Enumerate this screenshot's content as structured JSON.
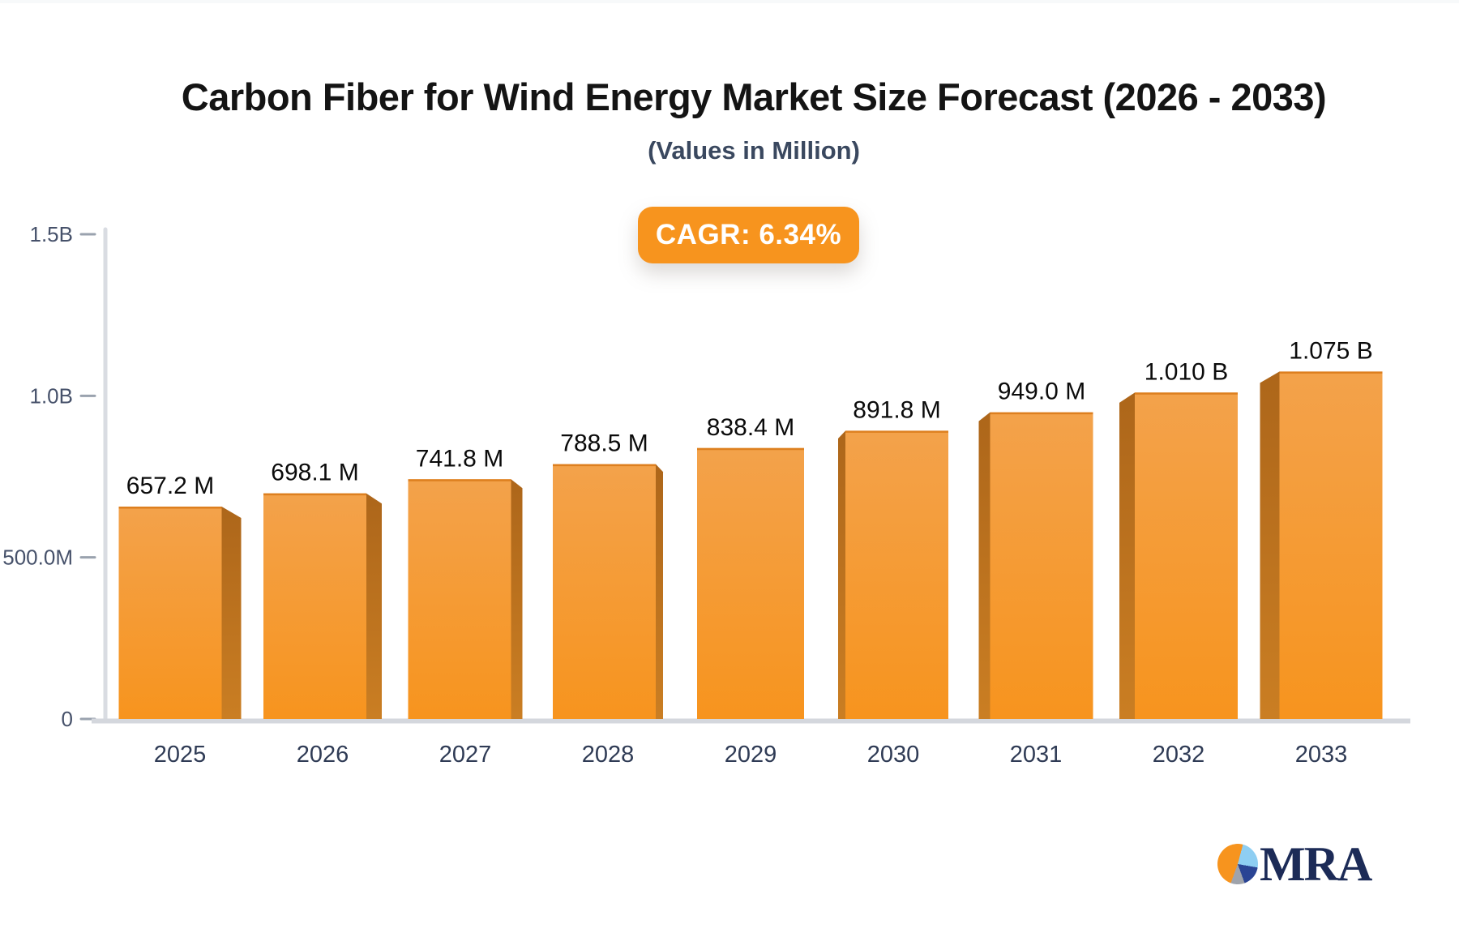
{
  "header": {
    "title": "Carbon Fiber for Wind Energy Market Size Forecast (2026 - 2033)",
    "subtitle": "(Values in Million)"
  },
  "cagr_badge": {
    "label": "CAGR: 6.34%",
    "background_color": "#f7941e",
    "text_color": "#ffffff"
  },
  "chart_data": {
    "type": "bar",
    "title": "Carbon Fiber for Wind Energy Market Size Forecast (2026 - 2033)",
    "subtitle": "(Values in Million)",
    "categories": [
      "2025",
      "2026",
      "2027",
      "2028",
      "2029",
      "2030",
      "2031",
      "2032",
      "2033"
    ],
    "values_millions": [
      657.2,
      698.1,
      741.8,
      788.5,
      838.4,
      891.8,
      949.0,
      1010.0,
      1075.0
    ],
    "value_labels": [
      "657.2 M",
      "698.1 M",
      "741.8 M",
      "788.5 M",
      "838.4 M",
      "891.8 M",
      "949.0 M",
      "1.010 B",
      "1.075 B"
    ],
    "xlabel": "",
    "ylabel": "",
    "ylim": [
      0,
      1500
    ],
    "yticks": [
      {
        "value": 0,
        "label": "0"
      },
      {
        "value": 500,
        "label": "500.0M"
      },
      {
        "value": 1000,
        "label": "1.0B"
      },
      {
        "value": 1500,
        "label": "1.5B"
      }
    ],
    "grid": false,
    "legend": null,
    "colors": {
      "bar_face_top": "#f3a24b",
      "bar_face_bottom": "#f7941e",
      "bar_top_edge": "#dd7f1f",
      "bar_side_top": "#ad661a",
      "bar_side_bottom": "#ca7e23",
      "axis_line": "#d9dce2",
      "baseline": "#d4d7dd",
      "tick": "#9aa2ae",
      "y_label": "#46516a",
      "x_label": "#2f3b55",
      "value_label": "#0b0b0b"
    }
  },
  "footer_logo": {
    "text": "MRA",
    "icon": "pie-chart-logo-icon",
    "pie_colors": [
      "#f7941e",
      "#8ecef2",
      "#2a4494",
      "#9fa3ab"
    ],
    "text_color": "#1c2b57"
  }
}
